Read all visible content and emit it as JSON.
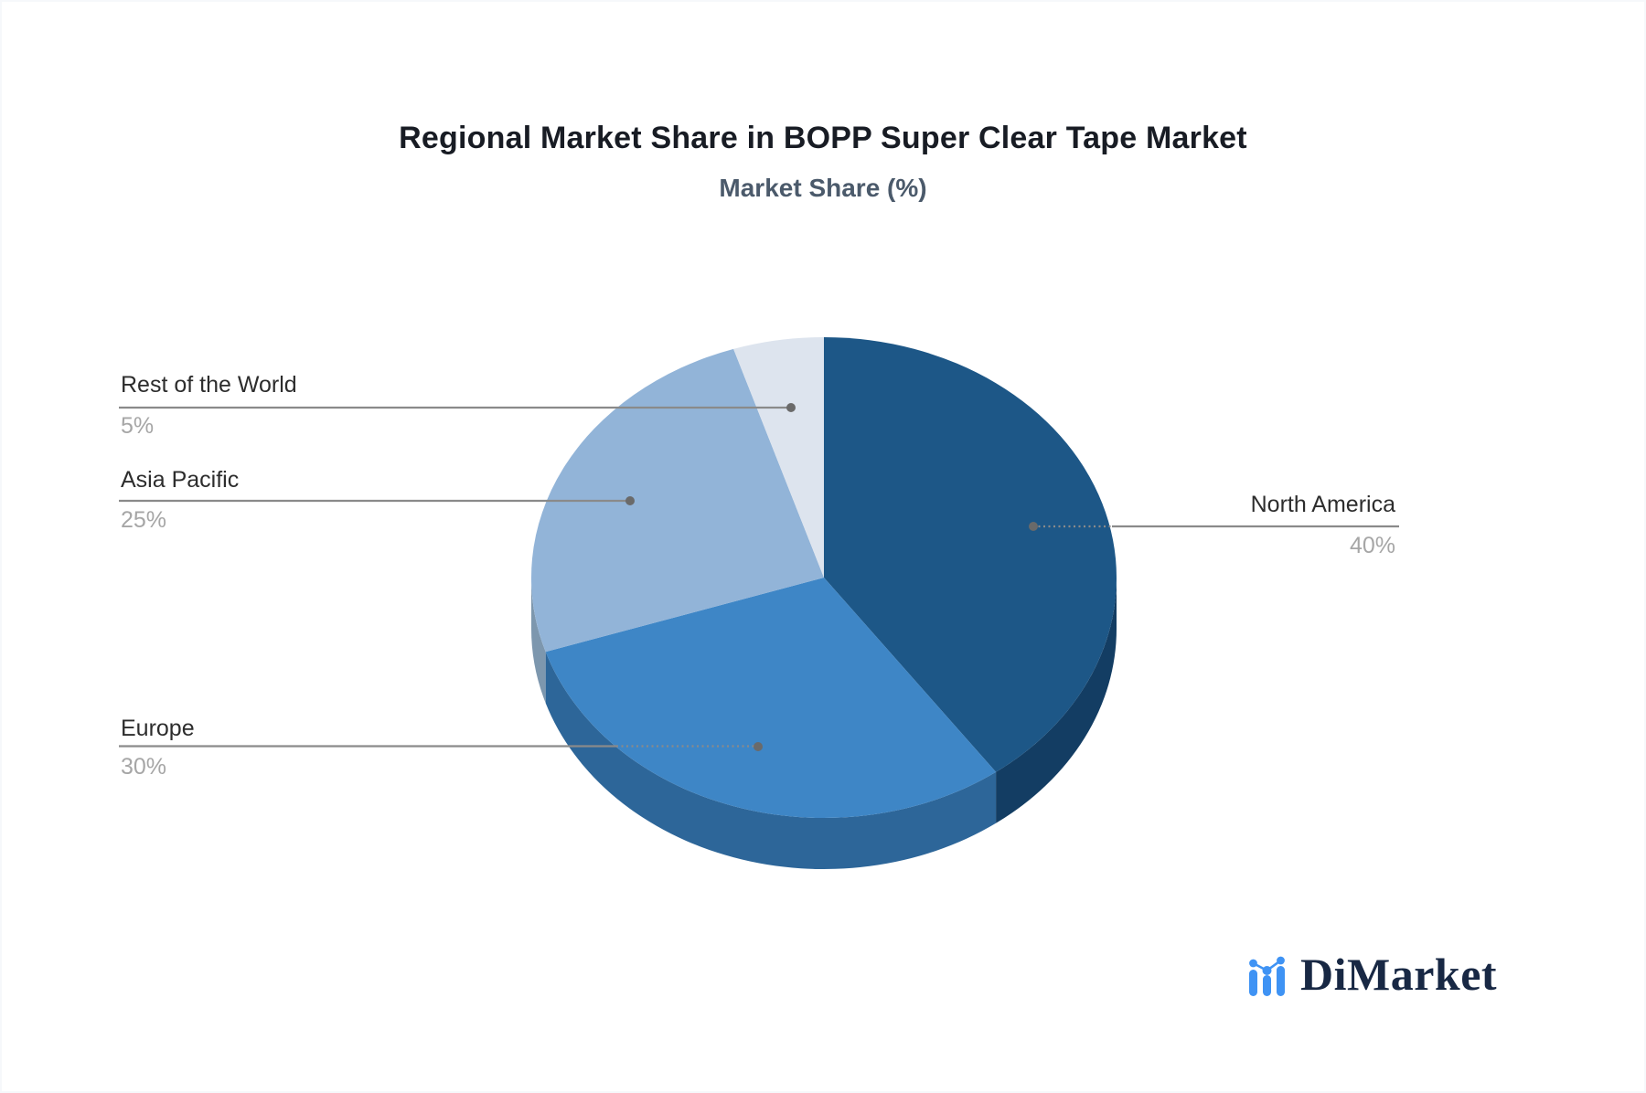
{
  "chart_data": {
    "type": "pie",
    "effect": "3d",
    "title": "Regional Market Share in BOPP Super Clear Tape Market",
    "subtitle": "Market Share (%)",
    "unit": "%",
    "direction": "clockwise",
    "start_angle_deg": 0,
    "legend_position": "callout-labels",
    "categories": [
      "North America",
      "Europe",
      "Asia Pacific",
      "Rest of the World"
    ],
    "values": [
      40,
      30,
      25,
      5
    ],
    "slices": [
      {
        "label": "North America",
        "value": 40,
        "display": "40%",
        "color": "#1d5787",
        "side_color": "#133d63"
      },
      {
        "label": "Europe",
        "value": 30,
        "display": "30%",
        "color": "#3e86c6",
        "side_color": "#2d6699"
      },
      {
        "label": "Asia Pacific",
        "value": 25,
        "display": "25%",
        "color": "#92b4d8",
        "side_color": "#7d97ae"
      },
      {
        "label": "Rest of the World",
        "value": 5,
        "display": "5%",
        "color": "#dde4ee",
        "side_color": "#c3cddb"
      }
    ],
    "callout_line_color": "#8a8a8a",
    "callout_dot_color": "#6a6a6a"
  },
  "branding": {
    "logo_text": "DiMarket",
    "logo_icon": "bar-line-chart-icon",
    "logo_accent_color": "#3f93f4",
    "logo_text_color": "#182844"
  }
}
